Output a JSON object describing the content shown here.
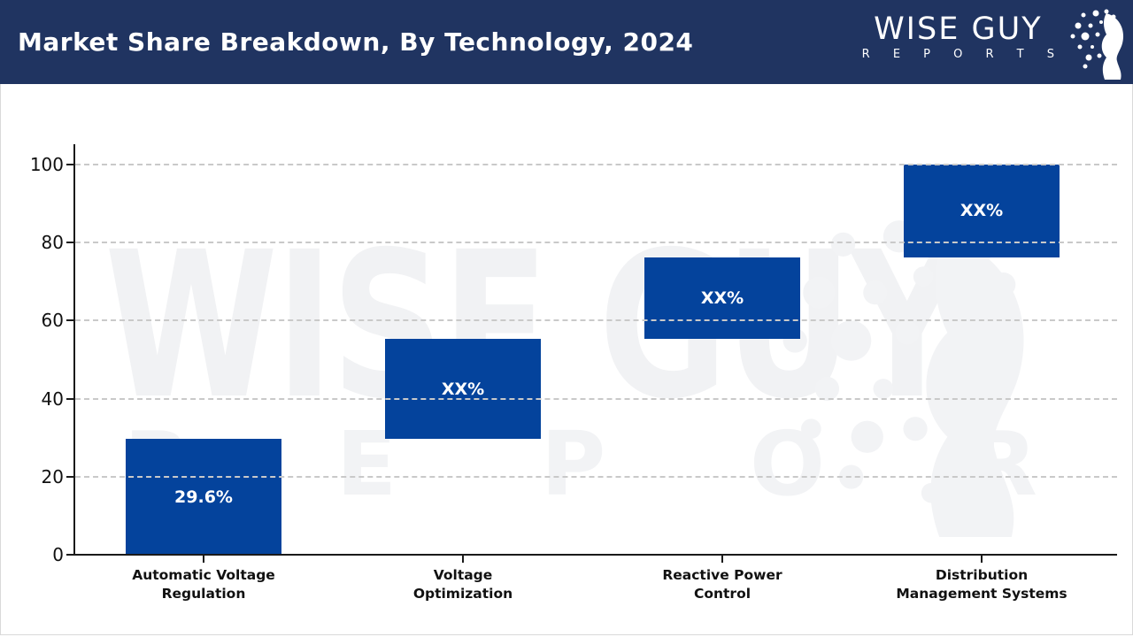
{
  "header": {
    "title": "Market Share Breakdown, By Technology, 2024",
    "logo_line1": "WISE GUY",
    "logo_line2": "R E P O R T S"
  },
  "watermark": {
    "line1": "WISE GUY",
    "line2": "R E P O R T S"
  },
  "chart_data": {
    "type": "bar",
    "subtype": "waterfall",
    "title": "Market Share Breakdown, By Technology, 2024",
    "categories": [
      {
        "line1": "Automatic Voltage",
        "line2": "Regulation"
      },
      {
        "line1": "Voltage",
        "line2": "Optimization"
      },
      {
        "line1": "Reactive Power",
        "line2": "Control"
      },
      {
        "line1": "Distribution",
        "line2": "Management Systems"
      }
    ],
    "bars": [
      {
        "category": "Automatic Voltage Regulation",
        "start": 0,
        "end": 29.6,
        "label": "29.6%"
      },
      {
        "category": "Voltage Optimization",
        "start": 29.6,
        "end": 55.3,
        "label": "XX%"
      },
      {
        "category": "Reactive Power Control",
        "start": 55.3,
        "end": 76.3,
        "label": "XX%"
      },
      {
        "category": "Distribution Management Systems",
        "start": 76.3,
        "end": 100,
        "label": "XX%"
      }
    ],
    "ylim": [
      0,
      100
    ],
    "yticks": [
      0,
      20,
      40,
      60,
      80,
      100
    ],
    "grid": "horizontal dashed gridlines drawn above bars",
    "legend": "none",
    "xlabel": "",
    "ylabel": ""
  },
  "colors": {
    "header_bg": "#203461",
    "bar": "#04439c",
    "gridline": "#c9c9c9",
    "axis": "#1a1a1a",
    "watermark": "#f1f2f4",
    "title_text": "#ffffff",
    "bar_label_text": "#ffffff"
  }
}
